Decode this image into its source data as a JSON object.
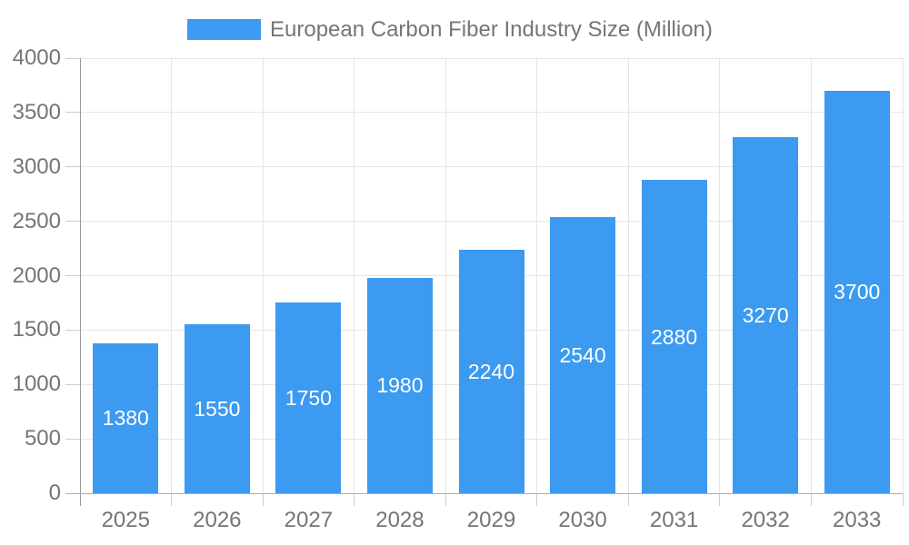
{
  "legend": {
    "label": "European Carbon Fiber Industry Size (Million)",
    "position": "top"
  },
  "colors": {
    "bar": "#3C9AF0",
    "grid": "#E6E6E6",
    "y_axis": "#9A9A9A",
    "x_axis": "#ADADAD",
    "tick": "#CCCCCC",
    "axis_text": "#757575",
    "value_label": "#FFFFFF",
    "background": "#FFFFFF"
  },
  "chart_data": {
    "type": "bar",
    "title": "European Carbon Fiber Industry Size (Million)",
    "xlabel": "",
    "ylabel": "",
    "categories": [
      "2025",
      "2026",
      "2027",
      "2028",
      "2029",
      "2030",
      "2031",
      "2032",
      "2033"
    ],
    "series": [
      {
        "name": "European Carbon Fiber Industry Size (Million)",
        "values": [
          1380,
          1550,
          1750,
          1980,
          2240,
          2540,
          2880,
          3270,
          3700
        ]
      }
    ],
    "bar_value_labels": [
      1380,
      1550,
      1750,
      1980,
      2240,
      2540,
      2880,
      3270,
      3700
    ],
    "ylim": [
      0,
      4000
    ],
    "ytick_step": 500,
    "yticks": [
      0,
      500,
      1000,
      1500,
      2000,
      2500,
      3000,
      3500,
      4000
    ],
    "grid": true,
    "legend_position": "top"
  }
}
